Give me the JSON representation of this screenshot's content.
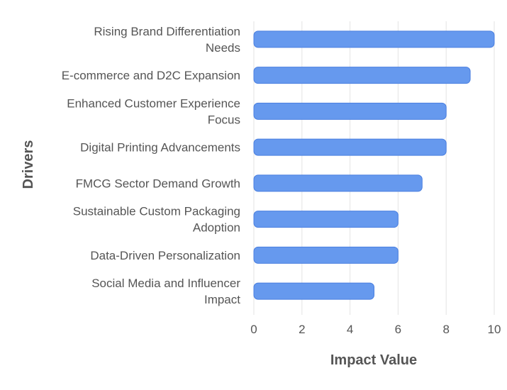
{
  "chart_data": {
    "type": "bar",
    "orientation": "horizontal",
    "categories": [
      [
        "Rising Brand Differentiation",
        "Needs"
      ],
      [
        "E-commerce and D2C Expansion"
      ],
      [
        "Enhanced Customer Experience",
        "Focus"
      ],
      [
        "Digital Printing Advancements"
      ],
      [
        "FMCG Sector Demand Growth"
      ],
      [
        "Sustainable Custom Packaging",
        "Adoption"
      ],
      [
        "Data-Driven Personalization"
      ],
      [
        "Social Media and Influencer",
        "Impact"
      ]
    ],
    "values": [
      10,
      9,
      8,
      8,
      7,
      6,
      6,
      5
    ],
    "xlabel": "Impact Value",
    "ylabel": "Drivers",
    "xlim": [
      0,
      10
    ],
    "xticks": [
      "0",
      "2",
      "4",
      "6",
      "8",
      "10"
    ],
    "grid": "vertical",
    "bar_color": "#6699ee",
    "bar_edge_color": "#4a7fe0"
  }
}
